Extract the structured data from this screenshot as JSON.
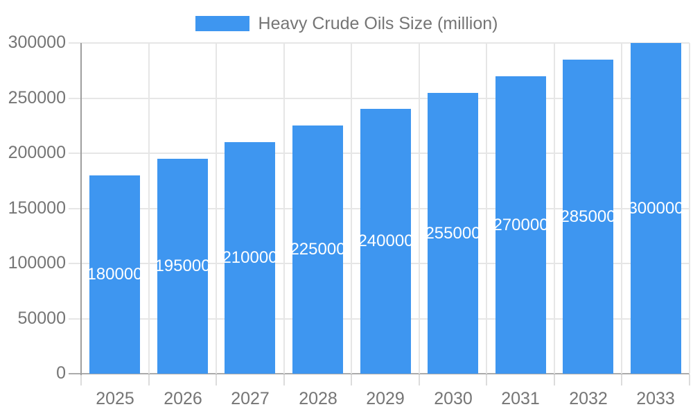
{
  "legend": {
    "label": "Heavy Crude Oils Size (million)"
  },
  "chart_data": {
    "type": "bar",
    "title": "",
    "xlabel": "",
    "ylabel": "",
    "categories": [
      "2025",
      "2026",
      "2027",
      "2028",
      "2029",
      "2030",
      "2031",
      "2032",
      "2033"
    ],
    "series": [
      {
        "name": "Heavy Crude Oils Size (million)",
        "values": [
          180000,
          195000,
          210000,
          225000,
          240000,
          255000,
          270000,
          285000,
          300000
        ]
      }
    ],
    "bar_value_labels": [
      "180000",
      "195000",
      "210000",
      "225000",
      "240000",
      "255000",
      "270000",
      "285000",
      "300000"
    ],
    "ylim": [
      0,
      300000
    ],
    "yticks": [
      0,
      50000,
      100000,
      150000,
      200000,
      250000,
      300000
    ],
    "ytick_labels": [
      "0",
      "50000",
      "100000",
      "150000",
      "200000",
      "250000",
      "300000"
    ],
    "grid": true,
    "legend_position": "top-center",
    "colors": {
      "bar": "#3E96F0",
      "value_label": "#FFFFFF",
      "axis_text": "#757575",
      "gridline": "#E6E6E6",
      "tick": "#DCDCDC",
      "axis_line": "#ABABAB",
      "y_axis_line": "#9E9E9E",
      "background": "#FFFFFF"
    }
  }
}
